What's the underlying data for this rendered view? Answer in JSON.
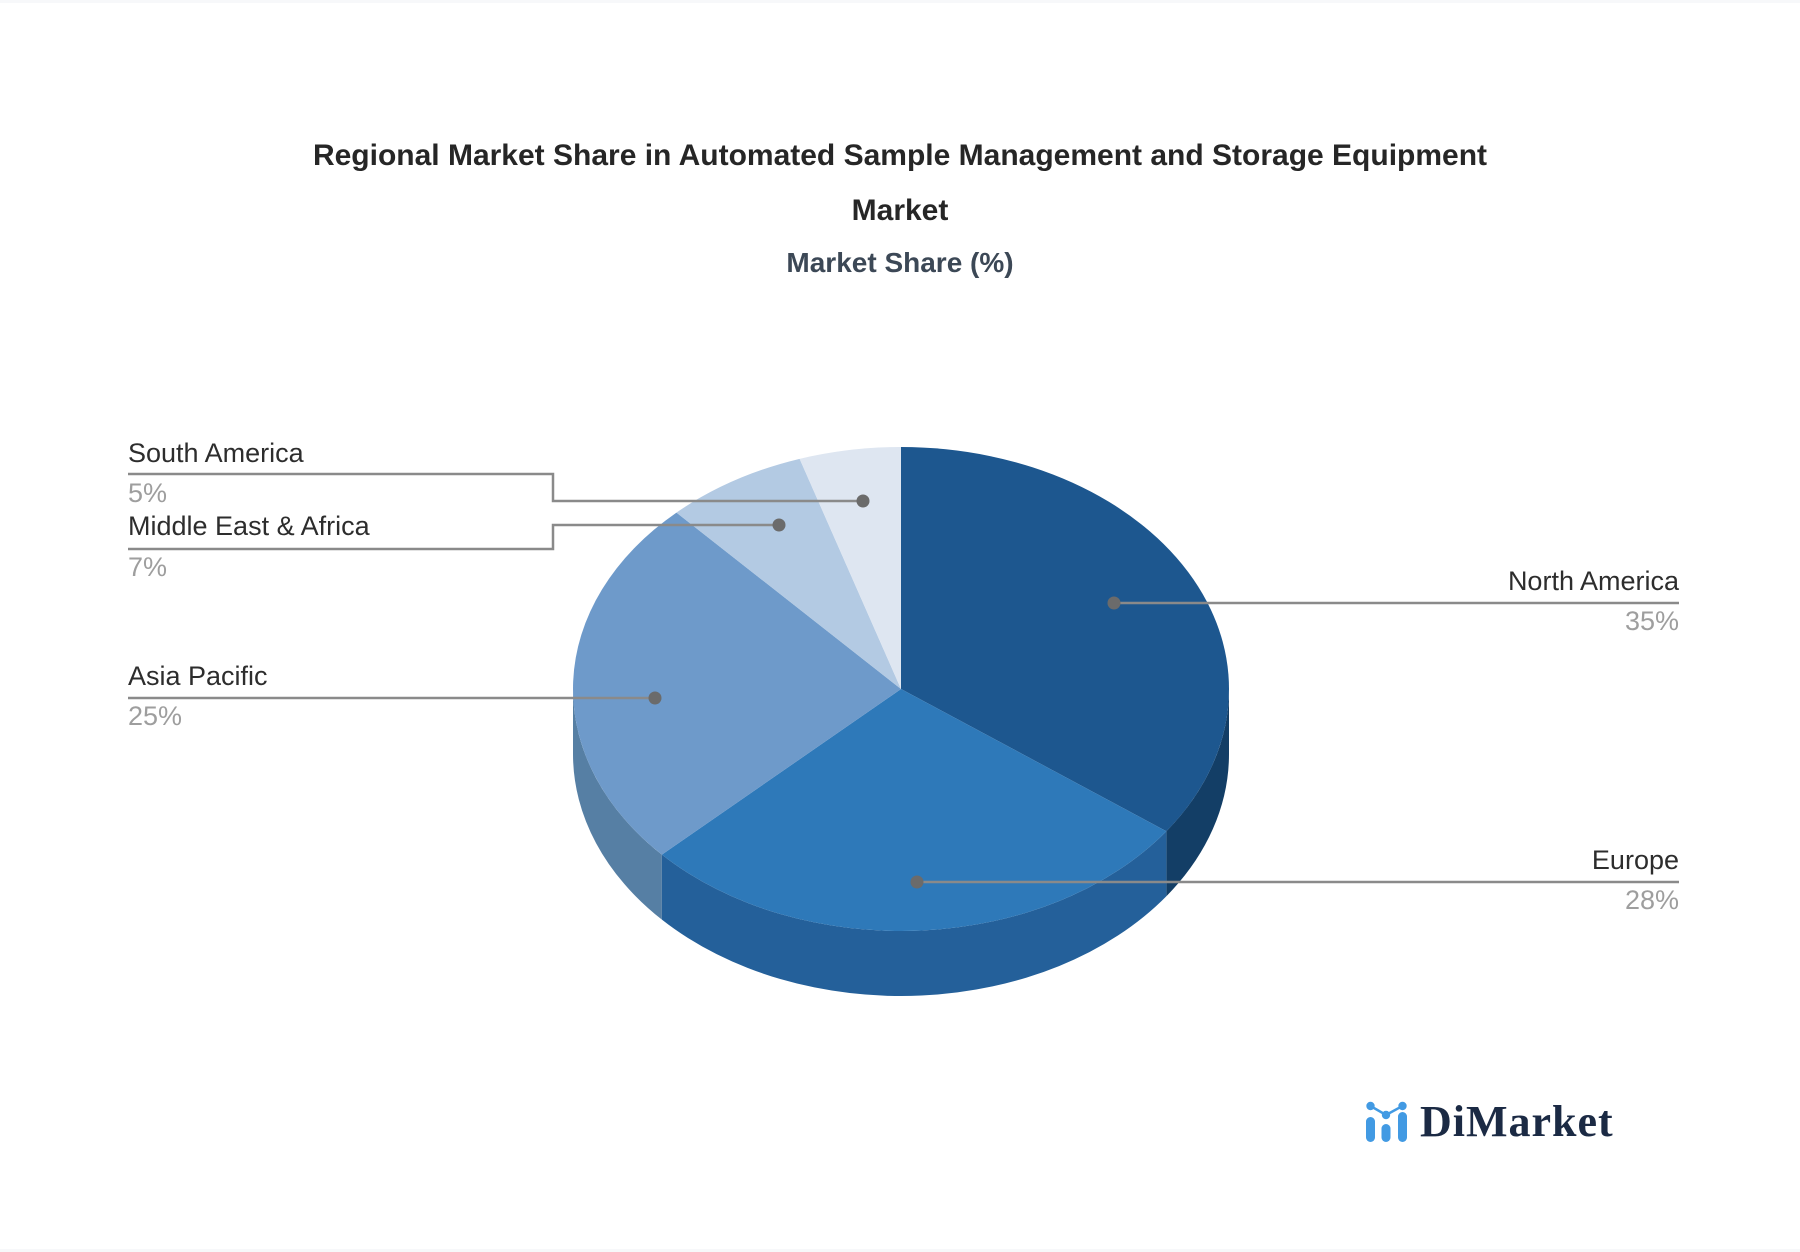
{
  "header": {
    "title_line1": "Regional Market Share in Automated Sample Management and Storage Equipment",
    "title_line2": "Market",
    "subtitle": "Market Share (%)"
  },
  "chart_data": {
    "type": "pie",
    "style": "3d",
    "unit": "%",
    "direction": "clockwise",
    "start_angle_deg": 0,
    "legend": "none",
    "categories": [
      "North America",
      "Europe",
      "Asia Pacific",
      "Middle East & Africa",
      "South America"
    ],
    "values": [
      35,
      28,
      25,
      7,
      5
    ],
    "slice_colors": [
      "#1d578f",
      "#2e79b9",
      "#6e9aca",
      "#b3cae3",
      "#dee6f1"
    ],
    "slice_side_colors": [
      "#133e66",
      "#24609a",
      "#567fa4",
      "",
      ""
    ],
    "labels": [
      {
        "name": "North America",
        "pct": "35%"
      },
      {
        "name": "Europe",
        "pct": "28%"
      },
      {
        "name": "Asia Pacific",
        "pct": "25%"
      },
      {
        "name": "Middle East & Africa",
        "pct": "7%"
      },
      {
        "name": "South America",
        "pct": "5%"
      }
    ],
    "leader_line_color": "#8a8a8a",
    "dot_color": "#6b6b6b",
    "label_text_color": "#2d2d2d",
    "pct_text_color": "#9e9e9e"
  },
  "branding": {
    "logo_text": "DiMarket",
    "logo_icon": "bar-line-chart-icon",
    "logo_icon_color": "#429ae3",
    "logo_text_color": "#1b2a44"
  }
}
